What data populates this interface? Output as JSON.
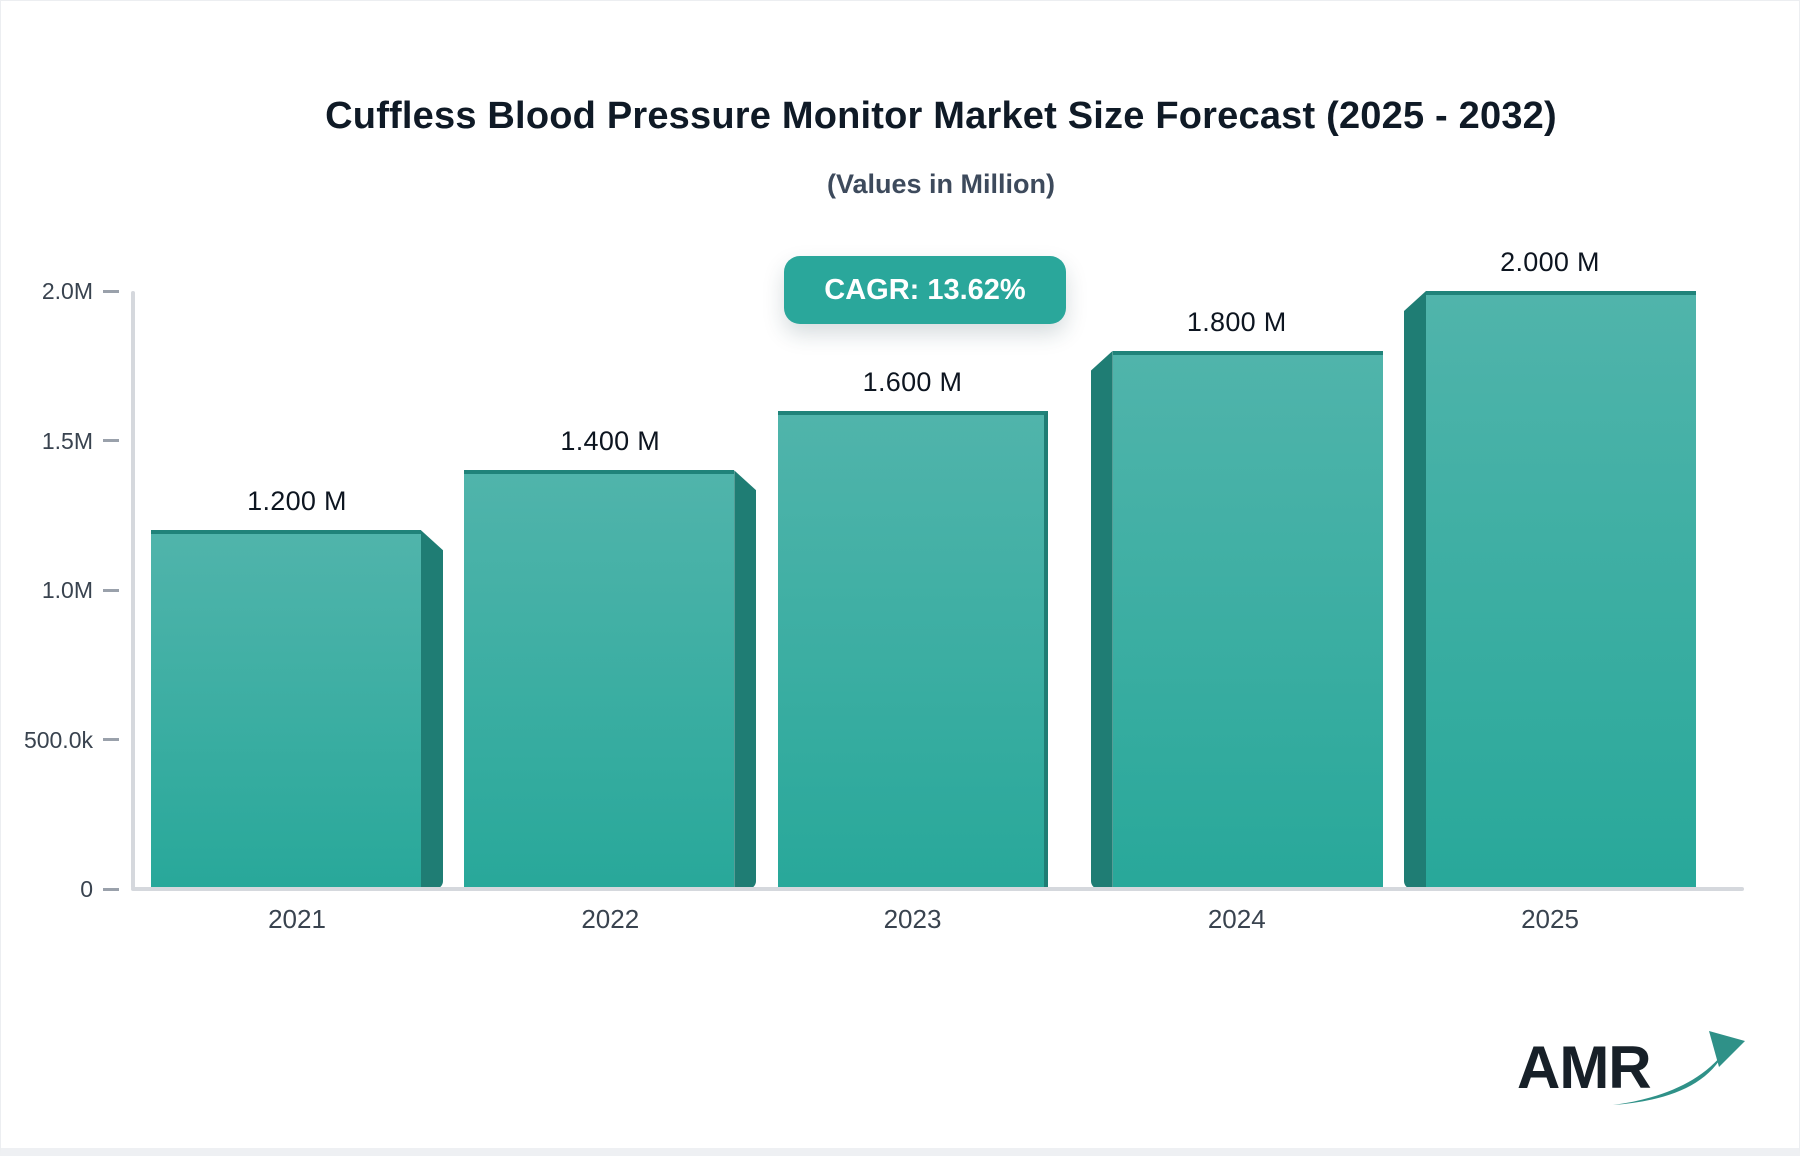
{
  "chart": {
    "title": "Cuffless Blood Pressure Monitor Market Size Forecast (2025 - 2032)",
    "subtitle": "(Values in Million)",
    "cagr_label": "CAGR: 13.62%"
  },
  "chart_data": {
    "type": "bar",
    "title": "Cuffless Blood Pressure Monitor Market Size Forecast (2025 - 2032)",
    "subtitle": "(Values in Million)",
    "categories": [
      "2021",
      "2022",
      "2023",
      "2024",
      "2025"
    ],
    "values": [
      1200000,
      1400000,
      1600000,
      1800000,
      2000000
    ],
    "value_labels": [
      "1.200 M",
      "1.400 M",
      "1.600 M",
      "1.800 M",
      "2.000 M"
    ],
    "cagr_percent": "13.62%",
    "unit": "Million",
    "ylim": [
      0,
      2000000
    ],
    "yticks": [
      {
        "value": 0,
        "label": "0"
      },
      {
        "value": 500000,
        "label": "500.0k"
      },
      {
        "value": 1000000,
        "label": "1.0M"
      },
      {
        "value": 1500000,
        "label": "1.5M"
      },
      {
        "value": 2000000,
        "label": "2.0M"
      }
    ],
    "grid": false,
    "legend_position": "none",
    "bar_style": "3d-extruded"
  },
  "colors": {
    "bar_top": "#50b4ab",
    "bar_bottom": "#28a89a",
    "bar_side_face": "#1f7d74",
    "bar_top_edge": "#20837a",
    "badge_bg": "#2aa79b",
    "badge_text": "#ffffff",
    "axis_line": "#d5d8dd",
    "tick": "#9aa1ab",
    "axis_label": "#39434f",
    "value_label": "#0d1520",
    "title": "#0f1a26",
    "subtitle": "#3d4a5c",
    "logo_text": "#172028",
    "logo_arrow": "#2f9188"
  },
  "logo": {
    "text": "AMR"
  }
}
